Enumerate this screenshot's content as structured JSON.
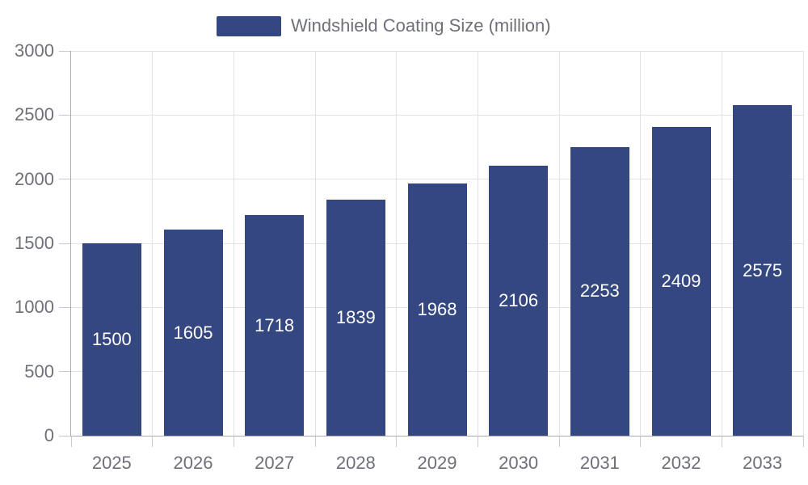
{
  "chart_data": {
    "type": "bar",
    "legend_label": "Windshield Coating Size (million)",
    "legend_position": "top",
    "categories": [
      "2025",
      "2026",
      "2027",
      "2028",
      "2029",
      "2030",
      "2031",
      "2032",
      "2033"
    ],
    "values": [
      1500,
      1605,
      1718,
      1839,
      1968,
      2106,
      2253,
      2409,
      2575
    ],
    "series": [
      {
        "name": "Windshield Coating Size (million)",
        "values": [
          1500,
          1605,
          1718,
          1839,
          1968,
          2106,
          2253,
          2409,
          2575
        ]
      }
    ],
    "xlabel": "",
    "ylabel": "",
    "ylim": [
      0,
      3000
    ],
    "yticks": [
      0,
      500,
      1000,
      1500,
      2000,
      2500,
      3000
    ],
    "grid": true,
    "value_labels_inside_bars": true,
    "colors": {
      "bar": "#344781",
      "bar_label": "#ffffff",
      "axis_line": "#aaaab0",
      "tick": "#c6cad4",
      "grid_line": "#e2e2e6",
      "axis_text": "#6E7079",
      "legend_text": "#6E7079",
      "background": "#ffffff"
    }
  }
}
